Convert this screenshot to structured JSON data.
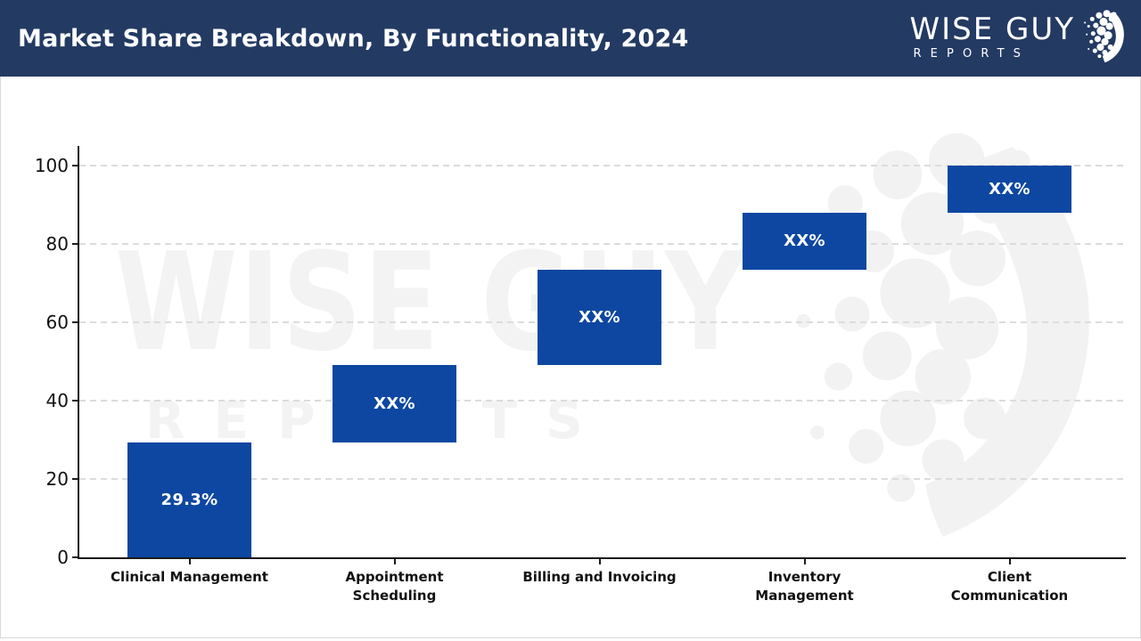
{
  "header": {
    "title": "Market Share Breakdown, By Functionality, 2024"
  },
  "logo": {
    "line1": "WISE GUY",
    "line2": "REPORTS",
    "head_icon": "wiseguy-head-icon"
  },
  "watermark": {
    "line1": "WISE GUY",
    "line2": "REPORTS"
  },
  "colors": {
    "header_bg": "#233A63",
    "bar": "#0d47a1",
    "bar_label": "#ffffff",
    "axis": "#1a1a1a",
    "gridline": "#dcdcdc",
    "watermark": "#f3f3f3"
  },
  "chart_data": {
    "type": "bar",
    "subtype": "waterfall",
    "title": "Market Share Breakdown, By Functionality, 2024",
    "xlabel": "",
    "ylabel": "",
    "ylim": [
      0,
      100
    ],
    "yticks": [
      0,
      20,
      40,
      60,
      80,
      100
    ],
    "grid": "horizontal-dashed",
    "legend": null,
    "categories": [
      "Clinical Management",
      "Appointment Scheduling",
      "Billing and Invoicing",
      "Inventory Management",
      "Client Communication"
    ],
    "bars": [
      {
        "category": "Clinical Management",
        "start": 0,
        "end": 29.3,
        "label": "29.3%"
      },
      {
        "category": "Appointment Scheduling",
        "start": 29.3,
        "end": 49.0,
        "label": "XX%"
      },
      {
        "category": "Billing and Invoicing",
        "start": 49.0,
        "end": 73.4,
        "label": "XX%"
      },
      {
        "category": "Inventory Management",
        "start": 73.4,
        "end": 88.0,
        "label": "XX%"
      },
      {
        "category": "Client Communication",
        "start": 88.0,
        "end": 100.0,
        "label": "XX%"
      }
    ]
  }
}
